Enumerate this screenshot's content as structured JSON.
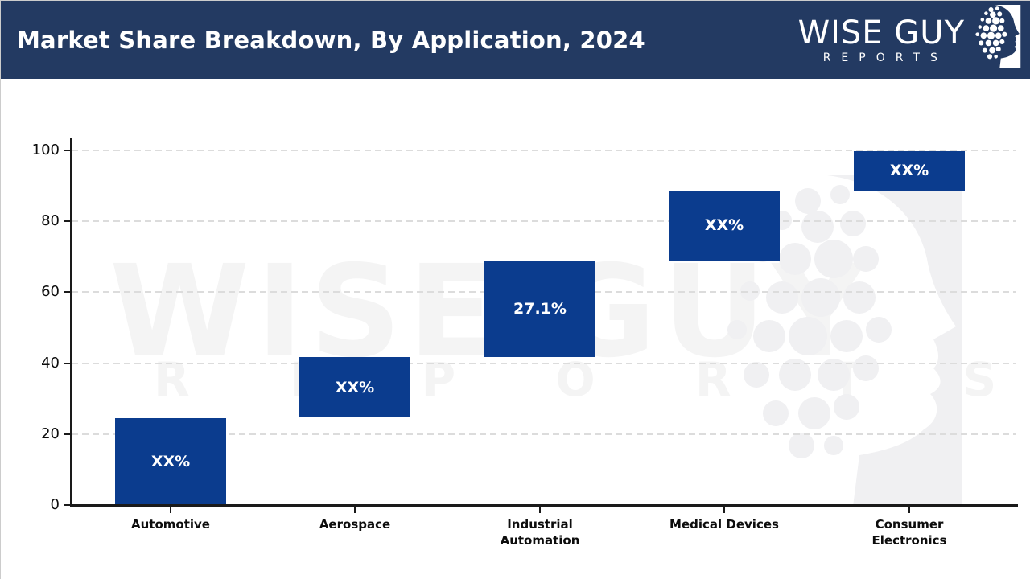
{
  "header": {
    "title": "Market Share Breakdown, By Application, 2024",
    "logo": {
      "line1": "WISE GUY",
      "line2": "REPORTS"
    }
  },
  "watermark": {
    "line1": "WISE GUY",
    "line2": "REPORTS"
  },
  "colors": {
    "header_bg": "#233a62",
    "bar": "#0b3c8e",
    "grid": "#dcdcdc",
    "axis": "#1a1a1a",
    "bar_label": "#ffffff",
    "watermark": "#f4f4f4"
  },
  "chart_data": {
    "type": "bar",
    "subtype": "waterfall",
    "title": "Market Share Breakdown, By Application, 2024",
    "categories": [
      "Automotive",
      "Aerospace",
      "Industrial Automation",
      "Medical Devices",
      "Consumer Electronics"
    ],
    "category_label_lines": [
      [
        "Automotive"
      ],
      [
        "Aerospace"
      ],
      [
        "Industrial",
        "Automation"
      ],
      [
        "Medical Devices"
      ],
      [
        "Consumer",
        "Electronics"
      ]
    ],
    "segments": [
      {
        "category": "Automotive",
        "start": 0,
        "end": 24.5,
        "value": 24.5,
        "value_label": "XX%"
      },
      {
        "category": "Aerospace",
        "start": 24.7,
        "end": 41.7,
        "value": 17.0,
        "value_label": "XX%"
      },
      {
        "category": "Industrial Automation",
        "start": 41.7,
        "end": 68.8,
        "value": 27.1,
        "value_label": "27.1%"
      },
      {
        "category": "Medical Devices",
        "start": 69.0,
        "end": 88.7,
        "value": 19.7,
        "value_label": "XX%"
      },
      {
        "category": "Consumer Electronics",
        "start": 88.7,
        "end": 99.8,
        "value": 11.1,
        "value_label": "XX%"
      }
    ],
    "xlabel": "",
    "ylabel": "",
    "yticks": [
      0,
      20,
      40,
      60,
      80,
      100
    ],
    "ytick_labels": [
      "0",
      "20",
      "40",
      "60",
      "80",
      "100"
    ],
    "ylim": [
      0,
      104
    ],
    "grid": "dashed-horizontal",
    "legend": "none"
  }
}
